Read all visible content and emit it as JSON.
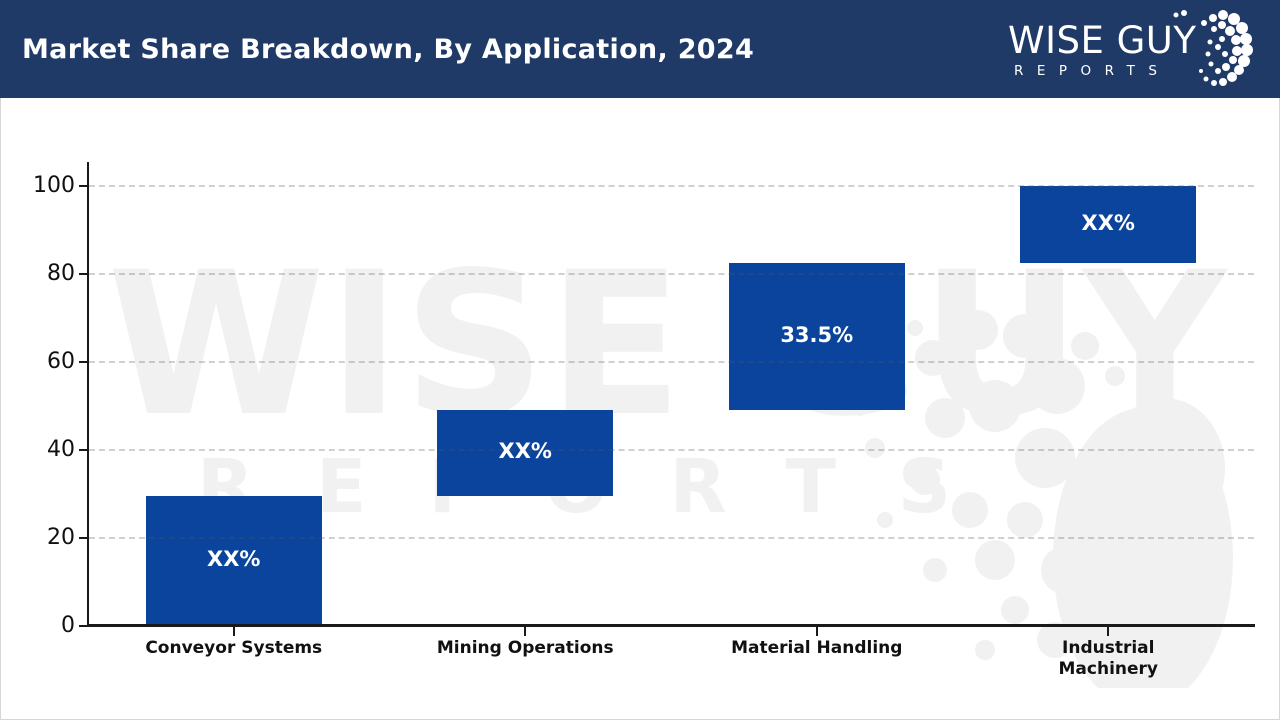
{
  "theme": {
    "header_bg": "#203a68",
    "bar_color": "#0a449c",
    "watermark_color": "#f1f1f1",
    "axis_color": "#1a1a1a"
  },
  "header": {
    "title": "Market Share Breakdown, By Application, 2024",
    "logo": {
      "line1": "WISE GUY",
      "line2": "REPORTS"
    }
  },
  "watermark": {
    "line1": "WISE GUY",
    "line2": "REPORTS"
  },
  "chart_data": {
    "type": "bar",
    "subtype": "waterfall-segments",
    "title": "Market Share Breakdown, By Application, 2024",
    "categories": [
      "Conveyor Systems",
      "Mining Operations",
      "Material Handling",
      "Industrial\nMachinery"
    ],
    "segments": [
      {
        "category": "Conveyor Systems",
        "start": 0,
        "end": 29.5,
        "label": "XX%"
      },
      {
        "category": "Mining Operations",
        "start": 29.5,
        "end": 49,
        "label": "XX%"
      },
      {
        "category": "Material Handling",
        "start": 49,
        "end": 82.5,
        "label": "33.5%",
        "value": 33.5
      },
      {
        "category": "Industrial Machinery",
        "start": 82.5,
        "end": 100,
        "label": "XX%"
      }
    ],
    "ylabel": "",
    "xlabel": "",
    "yticks": [
      0,
      20,
      40,
      60,
      80,
      100
    ],
    "ylim": [
      0,
      105
    ],
    "grid": "dashed-horizontal",
    "legend": "none",
    "bar_color": "#0a449c",
    "bar_label_color": "#ffffff"
  }
}
